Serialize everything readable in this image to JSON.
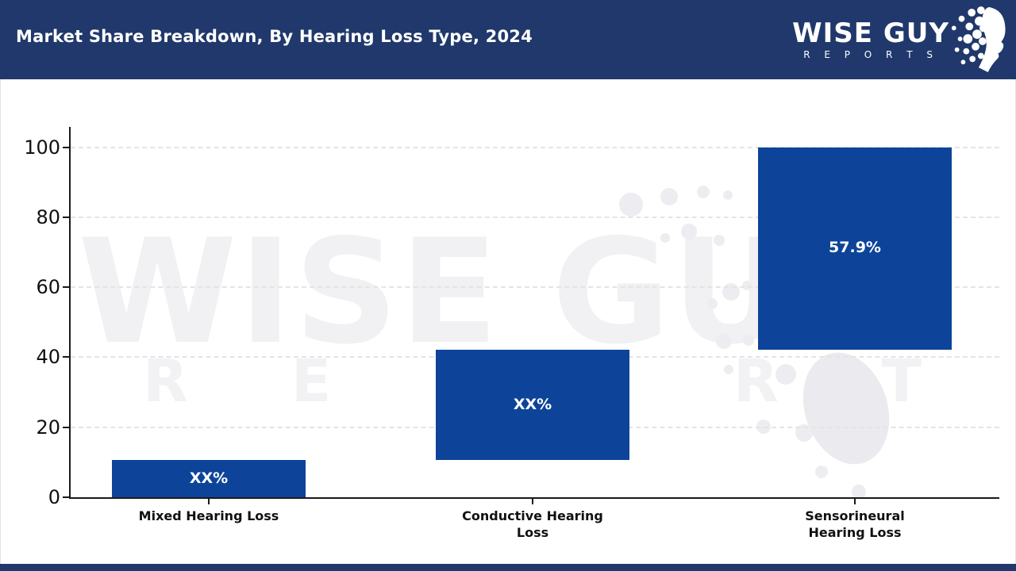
{
  "header": {
    "title": "Market Share Breakdown, By Hearing Loss Type, 2024",
    "logo": {
      "line1": "WISE GUY",
      "line2": "R E P O R T S"
    },
    "bg_color": "#20386b"
  },
  "watermark": {
    "line1": "WISE GUY",
    "line2": "R E P O R T S"
  },
  "chart_data": {
    "type": "bar",
    "subtype": "stacked_waterfall_column",
    "title": "Market Share Breakdown, By Hearing Loss Type, 2024",
    "categories": [
      "Mixed Hearing Loss",
      "Conductive Hearing Loss",
      "Sensorineural Hearing Loss"
    ],
    "category_lines": [
      [
        "Mixed Hearing Loss"
      ],
      [
        "Conductive Hearing",
        "Loss"
      ],
      [
        "Sensorineural",
        "Hearing Loss"
      ]
    ],
    "bars": [
      {
        "category": "Mixed Hearing Loss",
        "start": 0,
        "end": 10.6,
        "value_label": "XX%"
      },
      {
        "category": "Conductive Hearing Loss",
        "start": 10.6,
        "end": 42.1,
        "value_label": "XX%"
      },
      {
        "category": "Sensorineural Hearing Loss",
        "start": 42.1,
        "end": 100,
        "value": 57.9,
        "value_label": "57.9%"
      }
    ],
    "ylim": [
      0,
      100
    ],
    "yticks": [
      0,
      20,
      40,
      60,
      80,
      100
    ],
    "xlabel": "",
    "ylabel": "",
    "grid": "horizontal-dashed",
    "legend": "none",
    "bar_color": "#0d4499",
    "label_color": "#ffffff"
  }
}
